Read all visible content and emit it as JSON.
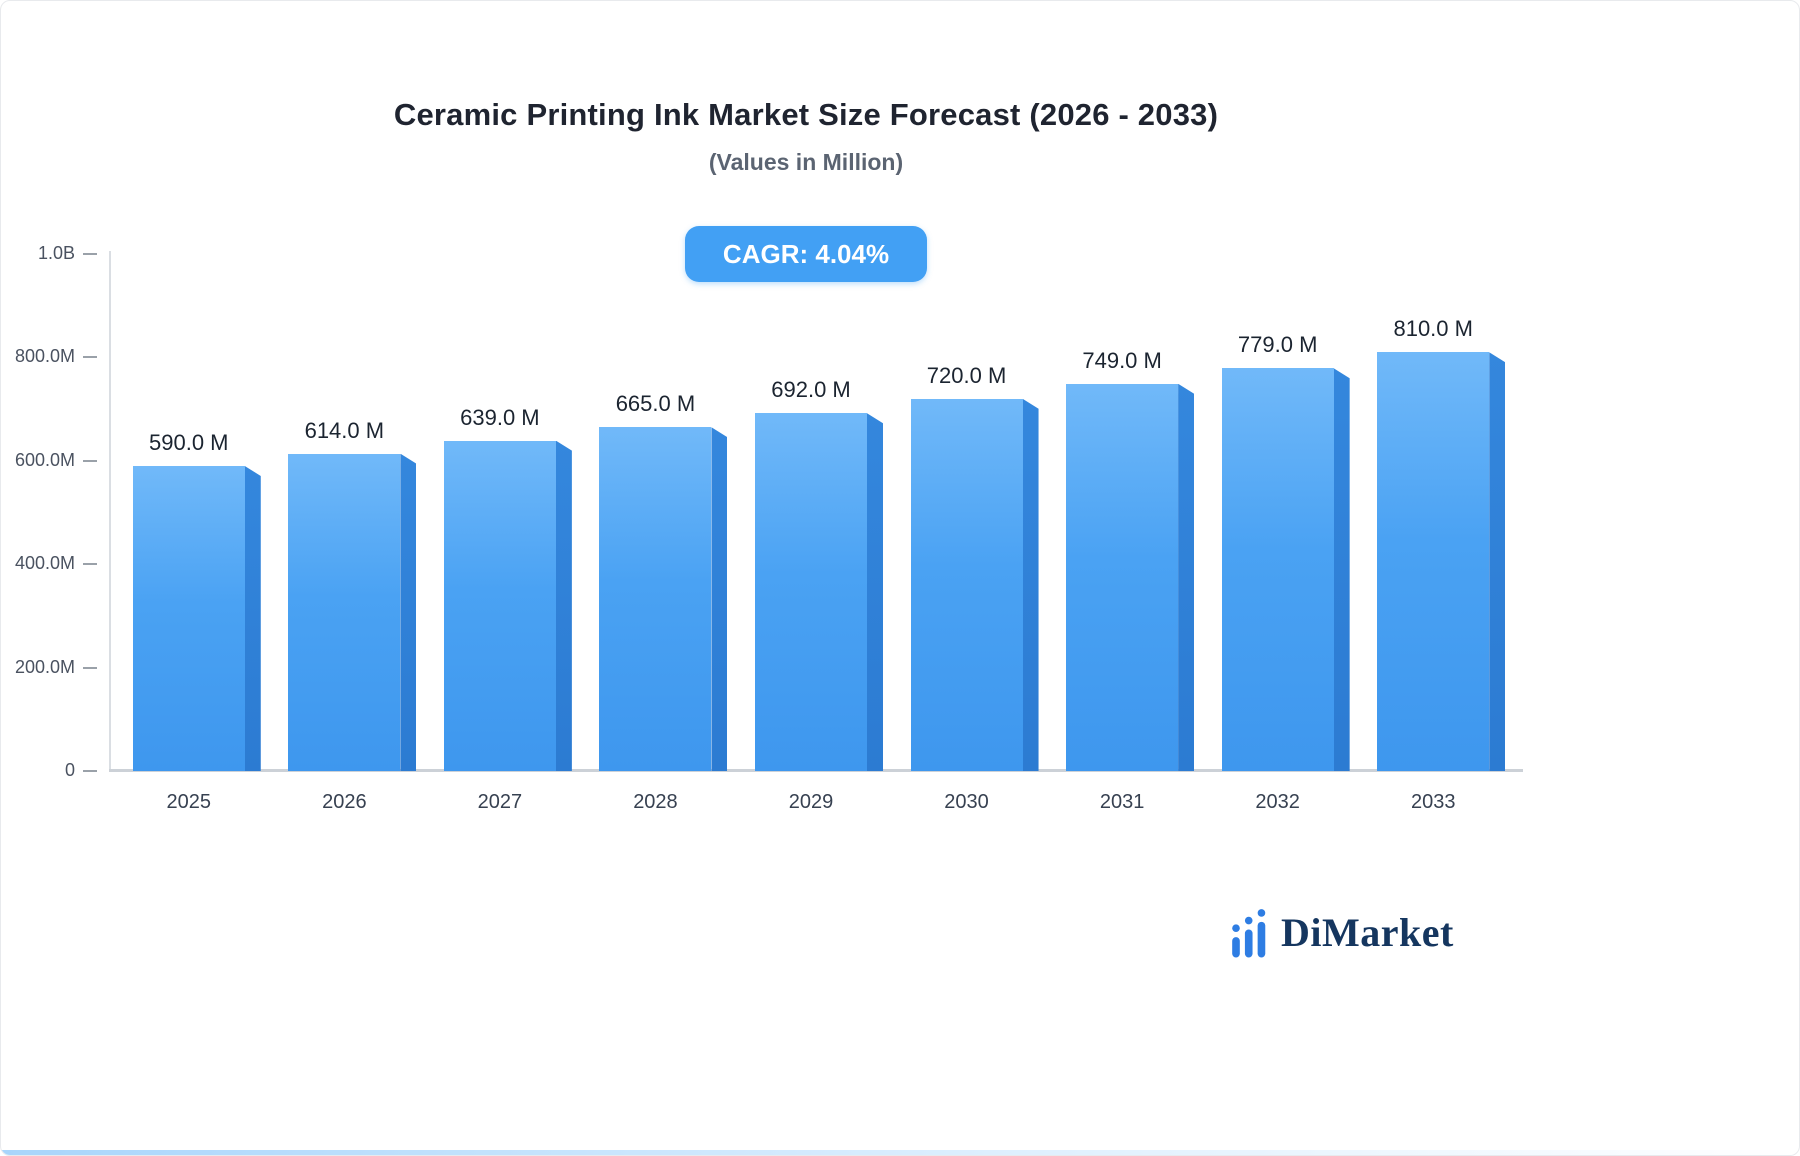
{
  "title": "Ceramic Printing Ink Market Size Forecast (2026 - 2033)",
  "subtitle": "(Values in Million)",
  "badge": {
    "label": "CAGR: 4.04%",
    "bg_color": "#42a0f4"
  },
  "logo": {
    "text": "DiMarket",
    "icon": "bar-chart-dots-icon",
    "icon_color": "#2e7de3",
    "text_color": "#15365f"
  },
  "chart_data": {
    "type": "bar",
    "title": "Ceramic Printing Ink Market Size Forecast (2026 - 2033)",
    "subtitle": "(Values in Million)",
    "unit": "Million USD",
    "categories": [
      "2025",
      "2026",
      "2027",
      "2028",
      "2029",
      "2030",
      "2031",
      "2032",
      "2033"
    ],
    "values": [
      590,
      614,
      639,
      665,
      692,
      720,
      749,
      779,
      810
    ],
    "value_labels": [
      "590.0 M",
      "614.0 M",
      "639.0 M",
      "665.0 M",
      "692.0 M",
      "720.0 M",
      "749.0 M",
      "779.0 M",
      "810.0 M"
    ],
    "cagr": "4.04%",
    "xlabel": "",
    "ylabel": "",
    "ylim": [
      0,
      1000
    ],
    "y_ticks": [
      {
        "label": "0",
        "value": 0
      },
      {
        "label": "200.0M",
        "value": 200
      },
      {
        "label": "400.0M",
        "value": 400
      },
      {
        "label": "600.0M",
        "value": 600
      },
      {
        "label": "800.0M",
        "value": 800
      },
      {
        "label": "1.0B",
        "value": 1000
      }
    ],
    "grid": false,
    "legend": "none",
    "bar_color_top": "#71b9f9",
    "bar_color_bottom": "#3e97ee",
    "bar_side_color": "#2c7bd2"
  }
}
